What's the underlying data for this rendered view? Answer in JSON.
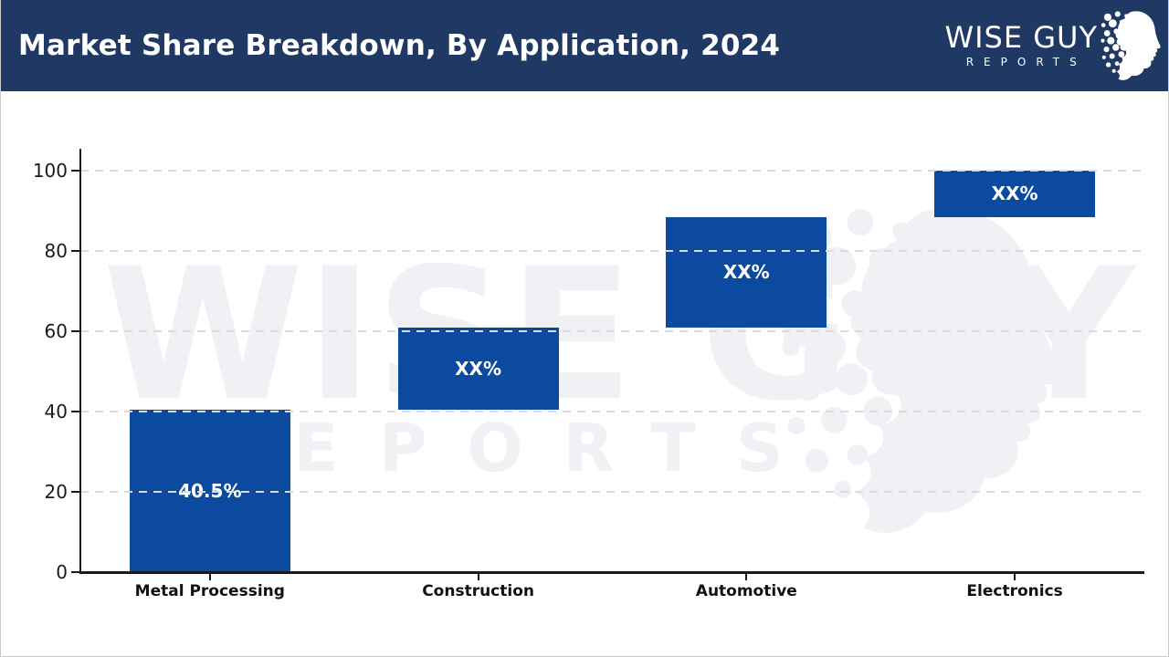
{
  "header": {
    "title": "Market Share Breakdown, By Application, 2024",
    "logo": {
      "name": "WISE GUY",
      "sub": "REPORTS"
    }
  },
  "watermark": {
    "line1": "WISE GUY",
    "line2": "REPORTS"
  },
  "colors": {
    "header_bg": "#1F3864",
    "bar": "#0B4A9F",
    "grid": "#DBDBDB",
    "axis": "#1A1A1A",
    "watermark": "#F0F1F4",
    "bar_label_text": "#FFFFFF"
  },
  "chart_data": {
    "type": "bar",
    "subtype": "waterfall",
    "title": "Market Share Breakdown, By Application, 2024",
    "xlabel": "",
    "ylabel": "",
    "categories": [
      "Metal Processing",
      "Construction",
      "Automotive",
      "Electronics"
    ],
    "segments": [
      {
        "category": "Metal Processing",
        "start": 0,
        "end": 40.5,
        "value": 40.5,
        "label": "40.5%"
      },
      {
        "category": "Construction",
        "start": 40.5,
        "end": 61.0,
        "value": 20.5,
        "label": "XX%"
      },
      {
        "category": "Automotive",
        "start": 61.0,
        "end": 88.5,
        "value": 27.5,
        "label": "XX%"
      },
      {
        "category": "Electronics",
        "start": 88.5,
        "end": 100.0,
        "value": 11.5,
        "label": "XX%"
      }
    ],
    "yticks": [
      0,
      20,
      40,
      60,
      80,
      100
    ],
    "ylim": [
      0,
      105
    ],
    "grid": "horizontal-dashed",
    "gridlines_above_bars": true,
    "legend": "none"
  }
}
